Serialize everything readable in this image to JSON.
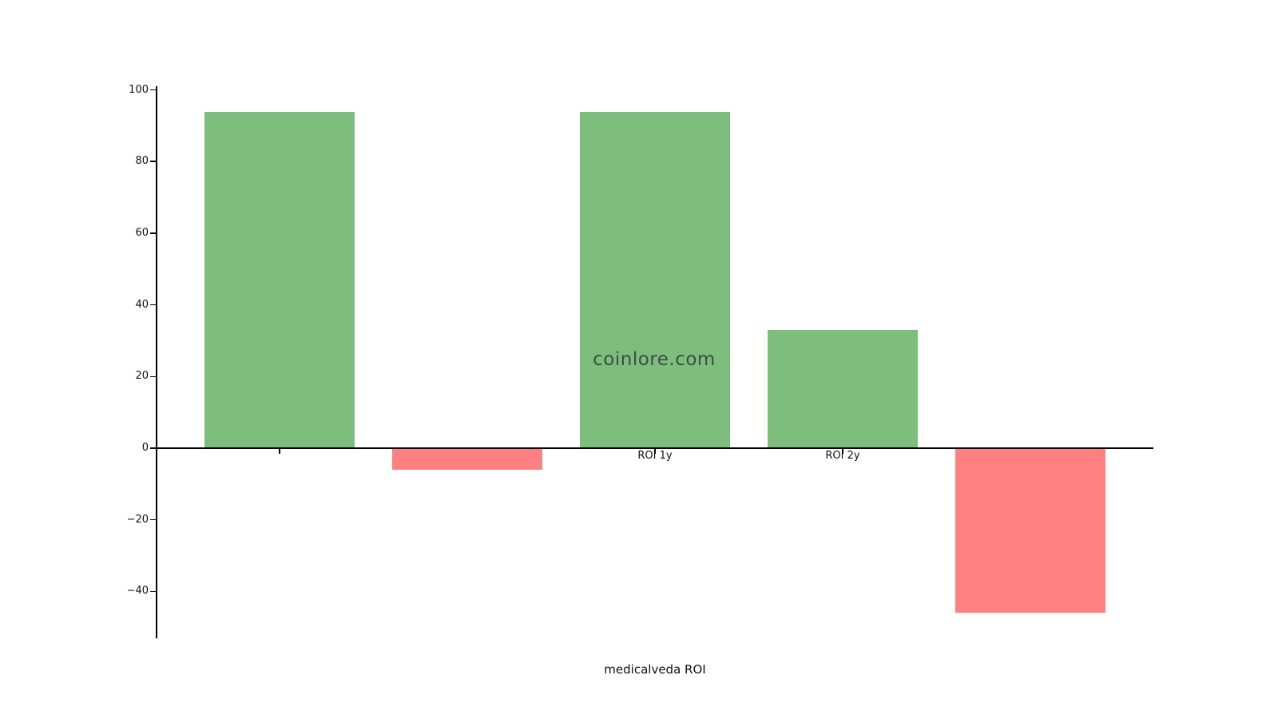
{
  "chart_data": {
    "type": "bar",
    "title": "medicalveda ROI",
    "watermark": "coinlore.com",
    "categories": [
      "",
      "",
      "ROI 1y",
      "ROI 2y",
      ""
    ],
    "values": [
      94,
      -6,
      94,
      33,
      -46
    ],
    "yticks": [
      100,
      80,
      60,
      40,
      20,
      0,
      -20,
      -40
    ],
    "ylim": [
      -53,
      101
    ],
    "xlabel": "",
    "ylabel": "",
    "grid": false,
    "legend_position": "none",
    "colors": {
      "positive": "#7dbe7d",
      "negative": "#ff8080",
      "axis": "#000000",
      "text": "#111111",
      "watermark": "#3d4d41",
      "background": "#ffffff"
    }
  }
}
